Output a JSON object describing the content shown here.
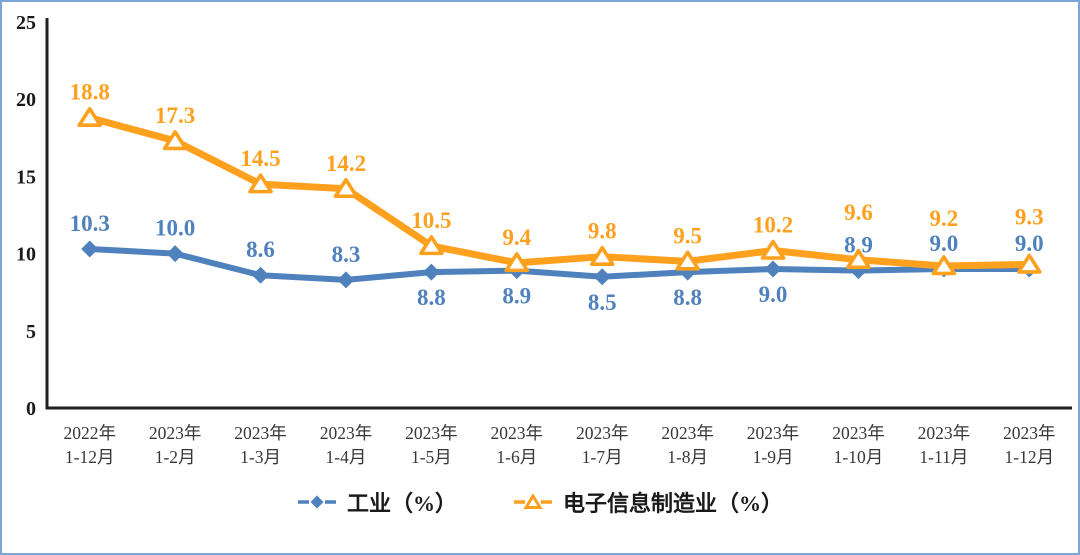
{
  "frame": {
    "border_color": "#7DA7D8",
    "background": "#FFFFFF"
  },
  "chart_data": {
    "type": "line",
    "title": "",
    "xlabel": "",
    "ylabel": "",
    "categories": [
      "2022年\n1-12月",
      "2023年\n1-2月",
      "2023年\n1-3月",
      "2023年\n1-4月",
      "2023年\n1-5月",
      "2023年\n1-6月",
      "2023年\n1-7月",
      "2023年\n1-8月",
      "2023年\n1-9月",
      "2023年\n1-10月",
      "2023年\n1-11月",
      "2023年\n1-12月"
    ],
    "series": [
      {
        "name": "工业（%）",
        "marker": "diamond",
        "color": "#4F81BD",
        "values": [
          10.3,
          10.0,
          8.6,
          8.3,
          8.8,
          8.9,
          8.5,
          8.8,
          9.0,
          8.9,
          9.0,
          9.0
        ],
        "label_positions": [
          "above",
          "above",
          "above",
          "above",
          "below",
          "below",
          "below",
          "below",
          "below",
          "above",
          "above",
          "above"
        ]
      },
      {
        "name": "电子信息制造业（%）",
        "marker": "triangle",
        "color": "#FFA11E",
        "values": [
          18.8,
          17.3,
          14.5,
          14.2,
          10.5,
          9.4,
          9.8,
          9.5,
          10.2,
          9.6,
          9.2,
          9.3
        ],
        "label_positions": [
          "above",
          "above",
          "above",
          "above",
          "above",
          "above",
          "above",
          "above",
          "above",
          "high",
          "high",
          "high"
        ]
      }
    ],
    "ylim": [
      0,
      25
    ],
    "yticks": [
      0,
      5,
      10,
      15,
      20,
      25
    ],
    "grid": false,
    "legend_position": "bottom",
    "axis_color": "#1F1F1F"
  }
}
